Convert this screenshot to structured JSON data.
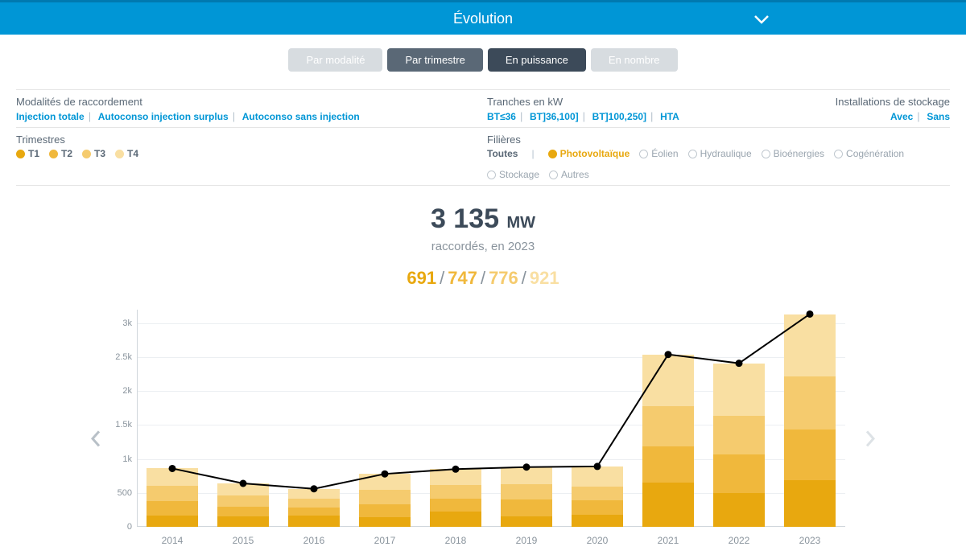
{
  "header": {
    "title": "Évolution"
  },
  "tabs": [
    {
      "label": "Par modalité",
      "state": "disabled"
    },
    {
      "label": "Par trimestre",
      "state": "active"
    },
    {
      "label": "En puissance",
      "state": "dark"
    },
    {
      "label": "En nombre",
      "state": "disabled"
    }
  ],
  "filters": {
    "modalites": {
      "label": "Modalités de raccordement",
      "items": [
        "Injection totale",
        "Autoconso injection surplus",
        "Autoconso sans injection"
      ]
    },
    "tranches": {
      "label": "Tranches en kW",
      "items": [
        "BT≤36",
        "BT]36,100]",
        "BT]100,250]",
        "HTA"
      ]
    },
    "stockage": {
      "label": "Installations de stockage",
      "items": [
        "Avec",
        "Sans"
      ]
    },
    "trimestres": {
      "label": "Trimestres",
      "items": [
        {
          "label": "T1",
          "color": "#e8a80f"
        },
        {
          "label": "T2",
          "color": "#f0b83c"
        },
        {
          "label": "T3",
          "color": "#f5cb6e"
        },
        {
          "label": "T4",
          "color": "#f9dfa2"
        }
      ]
    },
    "filieres": {
      "label": "Filières",
      "toutes": "Toutes",
      "items": [
        "Photovoltaïque",
        "Éolien",
        "Hydraulique",
        "Bioénergies",
        "Cogénération",
        "Stockage",
        "Autres"
      ],
      "selected": "Photovoltaïque"
    }
  },
  "summary": {
    "value": "3 135",
    "unit": "MW",
    "subtitle": "raccordés, en 2023",
    "breakdown": [
      {
        "value": "691",
        "color": "#e8a80f"
      },
      {
        "value": "747",
        "color": "#f0b83c"
      },
      {
        "value": "776",
        "color": "#f5cb6e"
      },
      {
        "value": "921",
        "color": "#f9dfa2"
      }
    ]
  },
  "chart": {
    "type": "stacked-bar-with-line",
    "ylim": [
      0,
      3200
    ],
    "yticks": [
      0,
      500,
      1000,
      1500,
      2000,
      2500,
      3000
    ],
    "ytick_labels": [
      "0",
      "500",
      "1k",
      "1.5k",
      "2k",
      "2.5k",
      "3k"
    ],
    "colors": {
      "t1": "#e8a80f",
      "t2": "#f0b83c",
      "t3": "#f5cb6e",
      "t4": "#f9dfa2"
    },
    "line_color": "#000000",
    "marker_color": "#000000",
    "grid_color": "#eceff2",
    "categories": [
      "2014",
      "2015",
      "2016",
      "2017",
      "2018",
      "2019",
      "2020",
      "2021",
      "2022",
      "2023"
    ],
    "series": [
      {
        "year": "2014",
        "t1": 170,
        "t2": 210,
        "t3": 230,
        "t4": 250,
        "total": 860
      },
      {
        "year": "2015",
        "t1": 150,
        "t2": 150,
        "t3": 160,
        "t4": 180,
        "total": 640
      },
      {
        "year": "2016",
        "t1": 170,
        "t2": 120,
        "t3": 130,
        "t4": 140,
        "total": 560
      },
      {
        "year": "2017",
        "t1": 140,
        "t2": 190,
        "t3": 210,
        "t4": 240,
        "total": 780
      },
      {
        "year": "2018",
        "t1": 230,
        "t2": 190,
        "t3": 200,
        "t4": 230,
        "total": 850
      },
      {
        "year": "2019",
        "t1": 160,
        "t2": 240,
        "t3": 230,
        "t4": 250,
        "total": 880
      },
      {
        "year": "2020",
        "t1": 180,
        "t2": 210,
        "t3": 200,
        "t4": 300,
        "total": 890
      },
      {
        "year": "2021",
        "t1": 650,
        "t2": 530,
        "t3": 600,
        "t4": 760,
        "total": 2540
      },
      {
        "year": "2022",
        "t1": 500,
        "t2": 570,
        "t3": 570,
        "t4": 770,
        "total": 2410
      },
      {
        "year": "2023",
        "t1": 691,
        "t2": 747,
        "t3": 776,
        "t4": 921,
        "total": 3135
      }
    ]
  }
}
